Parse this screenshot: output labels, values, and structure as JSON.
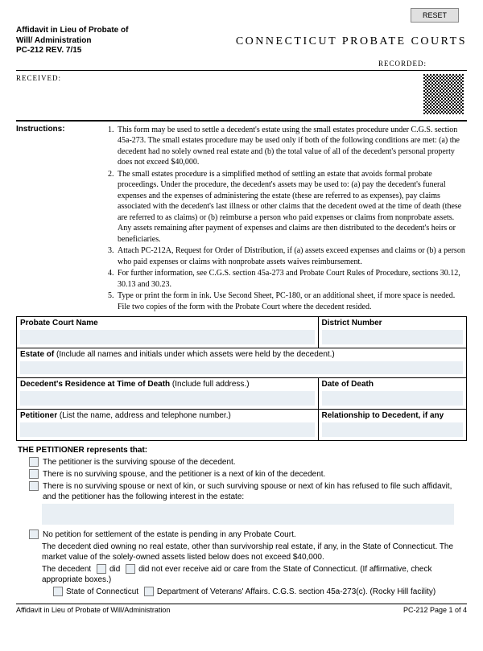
{
  "reset_label": "RESET",
  "hdr": {
    "l1": "Affidavit in Lieu of Probate of",
    "l2": "Will/ Administration",
    "l3": "PC-212 REV. 7/15",
    "court": "CONNECTICUT PROBATE COURTS",
    "recorded": "RECORDED:",
    "received": "RECEIVED:"
  },
  "instr": {
    "label": "Instructions:",
    "i1": "This form may be used to settle a decedent's estate using the small estates procedure under C.G.S. section 45a-273. The small estates procedure may be used only if both of the following conditions are met: (a) the decedent had no solely owned real estate and (b) the total value of all of the decedent's personal property does not exceed $40,000.",
    "i2": "The small estates procedure is a simplified method of settling an estate that avoids formal probate proceedings. Under the procedure, the decedent's assets may be used to: (a) pay the decedent's funeral expenses and the expenses of administering the estate (these are referred to as expenses), pay claims associated with the decedent's last illness or other claims that the decedent owed at the time of death (these are referred to as claims) or (b) reimburse a person who paid expenses or claims from nonprobate assets. Any assets remaining after payment of expenses and claims are then distributed to the decedent's heirs or beneficiaries.",
    "i3": "Attach PC-212A, Request for Order of Distribution, if (a) assets exceed expenses and claims or (b) a person who paid expenses or claims with nonprobate assets waives reimbursement.",
    "i4": "For further information, see C.G.S. section 45a-273 and Probate Court Rules of Procedure, sections 30.12, 30.13 and 30.23.",
    "i5": "Type or print the form in ink. Use Second Sheet, PC-180, or an additional sheet, if more space is needed. File two copies of the form with the Probate Court where the decedent resided."
  },
  "f": {
    "court_name": "Probate Court Name",
    "district": "District Number",
    "estate_of": "Estate of (Include all names and initials under which assets were held by the decedent.)",
    "residence": "Decedent's Residence at Time of Death (Include full address.)",
    "dod": "Date of Death",
    "petitioner": "Petitioner (List the name, address and telephone number.)",
    "relationship": "Relationship to Decedent, if any"
  },
  "rep": {
    "title": "THE PETITIONER represents that:",
    "c1": "The petitioner is the surviving spouse of the decedent.",
    "c2": "There is no surviving spouse, and the petitioner is a next of kin of the decedent.",
    "c3": "There is no surviving spouse or next of kin, or such surviving spouse or next of kin has refused to file such affidavit, and the petitioner has the following interest in the estate:",
    "c4": "No petition for settlement of the estate is pending in any Probate Court.",
    "p1": "The decedent died owning no real estate, other than survivorship real estate, if any, in the State of Connecticut. The market value of the solely-owned assets listed below does not exceed $40,000.",
    "p2a": "The decedent ",
    "p2_did": "did ",
    "p2_didnot": "did not ever receive aid or care from the State of Connecticut. (If affirmative, check appropriate boxes.)",
    "soc": "State of Connecticut ",
    "va": "Department of Veterans' Affairs.  C.G.S. section 45a-273(c). (Rocky Hill facility)"
  },
  "footer": {
    "left": "Affidavit in Lieu of Probate of Will/Administration",
    "right": "PC-212 Page 1 of 4"
  }
}
